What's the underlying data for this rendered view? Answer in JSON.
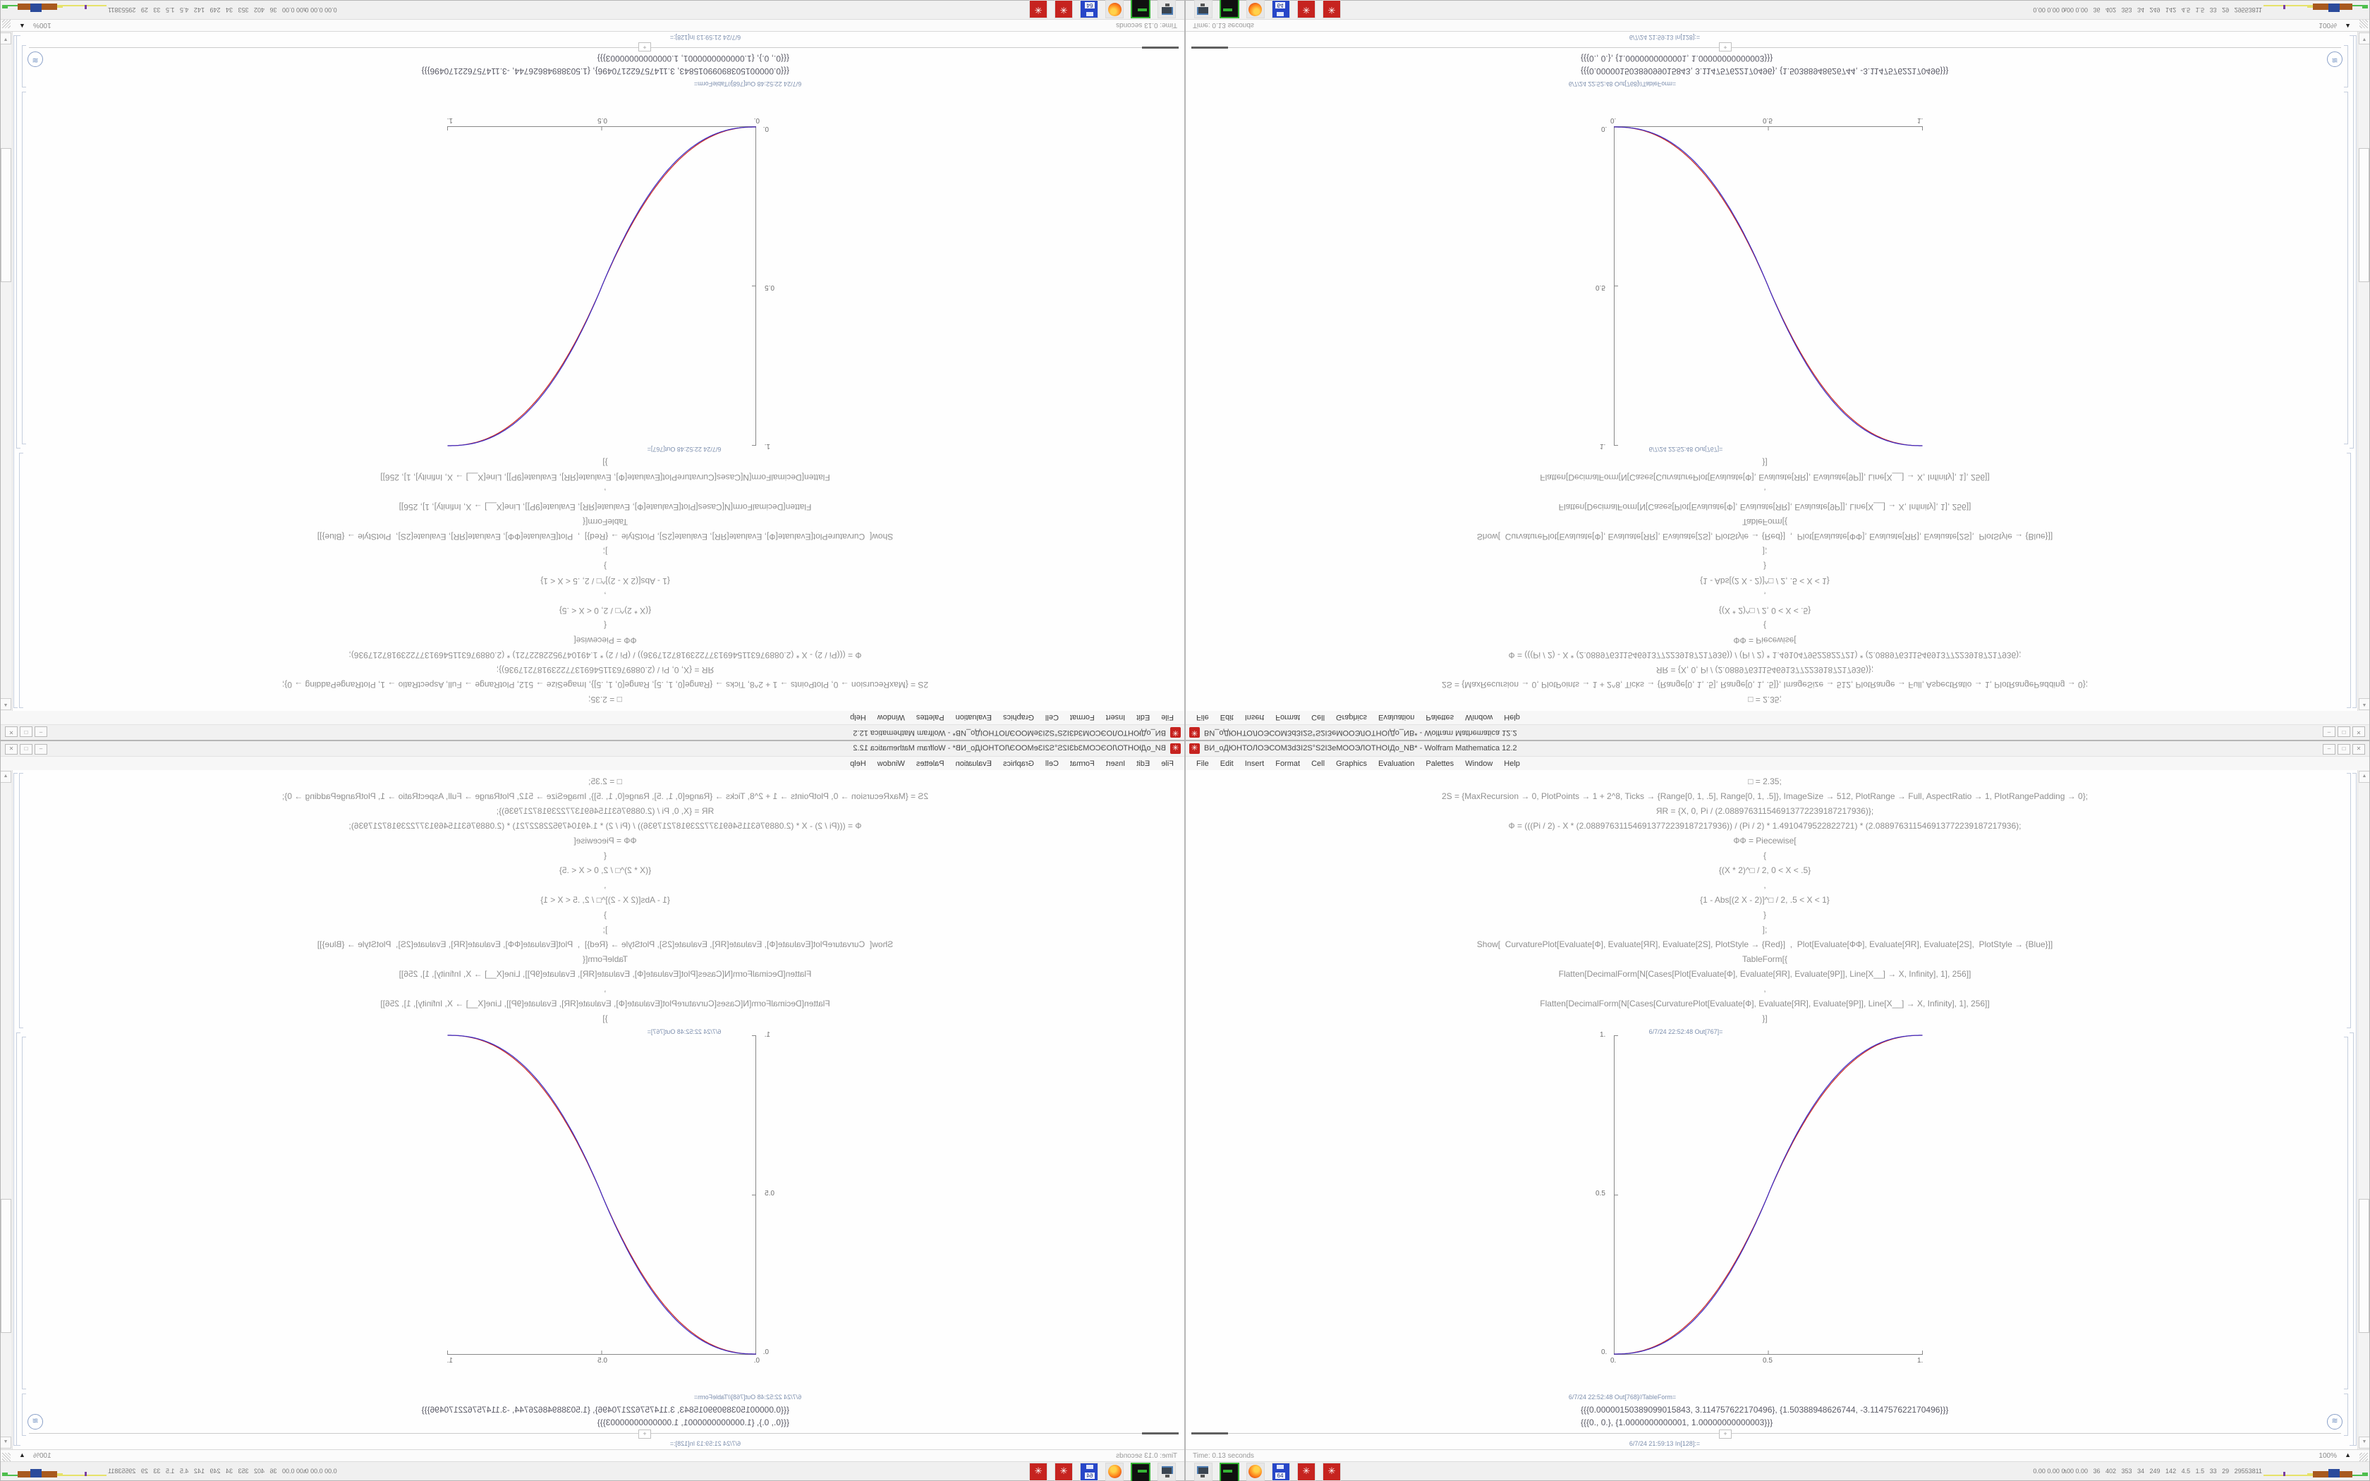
{
  "window": {
    "title": "ВИ_оДЮНТОЛОЭСОМЗdЗІ2S°S2ІЗеМООЭЛОТНОІДо_NB* - Wolfram Mathematica 12.2",
    "app_icon": "mathematica-icon",
    "controls": {
      "minimize": "–",
      "maximize": "□",
      "close": "✕"
    },
    "menu_items": [
      "File",
      "Edit",
      "Insert",
      "Format",
      "Cell",
      "Graphics",
      "Evaluation",
      "Palettes",
      "Window",
      "Help"
    ]
  },
  "notebook": {
    "code_lines": [
      "□ = 2.35;",
      "2S = {MaxRecursion → 0, PlotPoints → 1 + 2^8, Ticks → {Range[0, 1, .5], Range[0, 1, .5]}, ImageSize → 512, PlotRange → Full, AspectRatio → 1, PlotRangePadding → 0};",
      "ЯR = {X, 0, Pi / (2.088976311546913772239187217936)};",
      "Ф = (((Pi / 2) - X * (2.088976311546913772239187217936)) / (Pi / 2) * 1.4910479522822721) * (2.088976311546913772239187217936);",
      "ФФ = Piecewise[",
      "{",
      "{(X * 2)^□ / 2, 0 < X < .5}",
      ",",
      "{1 - Abs[(2 X - 2)]^□ / 2, .5 < X < 1}",
      "}",
      "];",
      "Show[  CurvaturePlot[Evaluate[Ф], Evaluate[ЯR], Evaluate[2S], PlotStyle → {Red}]  ,  Plot[Evaluate[ФФ], Evaluate[ЯR], Evaluate[2S],  PlotStyle → {Blue}]]",
      "TableForm[{",
      "Flatten[DecimalForm[N[Cases[Plot[Evaluate[Ф], Evaluate[ЯR], Evaluate[9P]], Line[X__] → X, Infinity], 1], 256]]",
      ",",
      "Flatten[DecimalForm[N[Cases[CurvaturePlot[Evaluate[Ф], Evaluate[ЯR], Evaluate[9P]], Line[X__] → X, Infinity], 1], 256]]",
      "}]"
    ],
    "out_plot_label": "6/7/24 22:52:48 Out[767]=",
    "out_table_label": "6/7/24 22:52:48 Out[768]//TableForm=",
    "table_line1": "{{{0.00000150389099015843, 3.114757622170496}, {1.50388948626744, -3.114757622170496}}}",
    "table_line2": "{{{0., 0.}, {1.0000000000001, 1.00000000000003}}}",
    "next_in_label": "6/7/24 21:59:13 In[128]:=",
    "plus_marker": "+"
  },
  "chart_data": {
    "type": "line",
    "title": "",
    "xlabel": "",
    "ylabel": "",
    "x_range": [
      0,
      1
    ],
    "y_range": [
      0,
      1
    ],
    "x_tick_labels": [
      "0.",
      "0.5",
      "1."
    ],
    "y_tick_labels": [
      "1.",
      "0.5",
      "0."
    ],
    "grid": false,
    "legend": "none",
    "axes": "left and bottom only",
    "exponent": 2.35,
    "formula": "ФФ(X) = (2X)^2.35/2 for 0<X<.5 ; 1 - Abs[2X-2]^2.35/2 for .5<X<1",
    "series": [
      {
        "name": "CurvaturePlot[Evaluate[Ф]] (Red)",
        "color": "#cc2a22"
      },
      {
        "name": "Plot[Evaluate[ФФ]] (Blue)",
        "color": "#3b2fc9"
      }
    ],
    "key_points": [
      [
        0,
        0
      ],
      [
        0.25,
        0.098
      ],
      [
        0.5,
        0.5
      ],
      [
        0.75,
        0.902
      ],
      [
        1,
        1
      ]
    ]
  },
  "status_bar": {
    "left": "Time: 0.13 seconds",
    "zoom": "100%"
  },
  "taskbar": {
    "expand_glyph": "∧",
    "icons": [
      "display-settings-icon",
      "capture-green-icon",
      "firefox-icon",
      "floppy64-icon",
      "mathematica-icon",
      "mathematica-icon"
    ],
    "stats": "0.00 0.00 0.00 0.00   36   402   353   34   249   142   4.5   1.5   33   29   29553811"
  },
  "colors": {
    "accent-red": "#c6231f",
    "curve-red": "#cc2a22",
    "curve-blue": "#3b2fc9",
    "label-blue": "#7d8fae",
    "tray-yellow": "#e6e26a",
    "tray-brown": "#a85a1e",
    "tray-blue": "#2b4b9b",
    "tray-green": "#4dbf4d",
    "tray-purple": "#7a3fa0"
  }
}
